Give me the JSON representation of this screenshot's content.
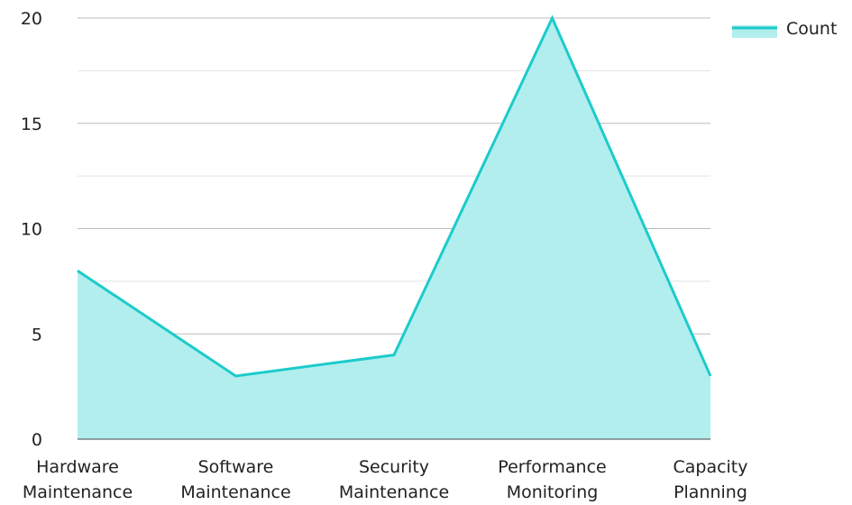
{
  "chart_data": {
    "type": "area",
    "categories": [
      [
        "Hardware",
        "Maintenance"
      ],
      [
        "Software",
        "Maintenance"
      ],
      [
        "Security",
        "Maintenance"
      ],
      [
        "Performance",
        "Monitoring"
      ],
      [
        "Capacity",
        "Planning"
      ]
    ],
    "series": [
      {
        "name": "Count",
        "values": [
          8,
          3,
          4,
          20,
          3
        ]
      }
    ],
    "ylim": [
      0,
      20
    ],
    "y_ticks": [
      0,
      5,
      10,
      15,
      20
    ],
    "grid": true,
    "legend": {
      "position": "top-right",
      "entries": [
        "Count"
      ]
    },
    "colors": {
      "line": "#1ccbcb",
      "fill": "#b2eeee",
      "grid_major": "#bbbbbb",
      "grid_minor": "#e3e3e3",
      "axis": "#444444",
      "text": "#222222"
    },
    "title": "",
    "xlabel": "",
    "ylabel": ""
  }
}
